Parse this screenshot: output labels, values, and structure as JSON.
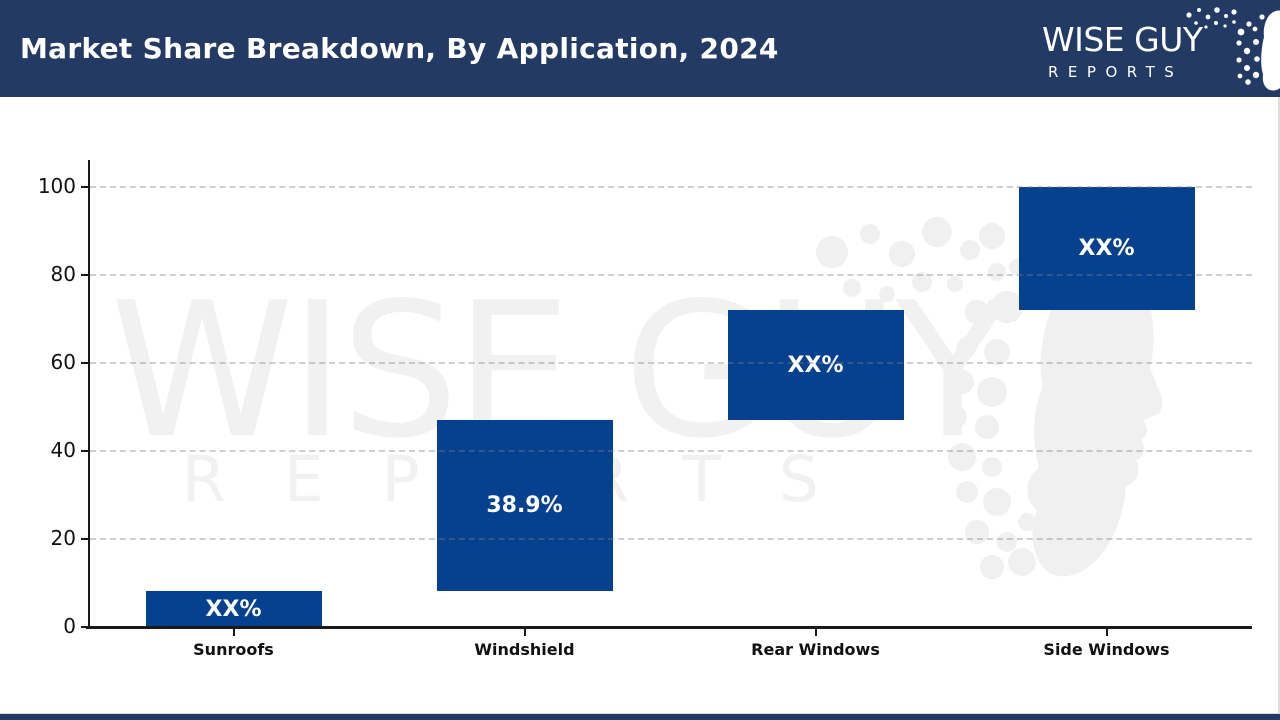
{
  "header": {
    "title": "Market Share Breakdown, By Application, 2024",
    "bg_color": "#223a64",
    "logo": {
      "line1": "WISE GUY",
      "line2": "REPORTS",
      "head_icon": "dotted-head-profile"
    }
  },
  "watermark": {
    "line1": "WISE GUY",
    "line2": "REPORTS",
    "head_icon": "dotted-head-profile"
  },
  "chart_data": {
    "type": "bar",
    "subtype": "waterfall-stacked-breakdown",
    "title": "Market Share Breakdown, By Application, 2024",
    "categories": [
      "Sunroofs",
      "Windshield",
      "Rear Windows",
      "Side Windows"
    ],
    "segments": [
      {
        "category": "Sunroofs",
        "start": 0,
        "end": 8.1,
        "value": 8.1,
        "label": "XX%"
      },
      {
        "category": "Windshield",
        "start": 8.1,
        "end": 47.0,
        "value": 38.9,
        "label": "38.9%"
      },
      {
        "category": "Rear Windows",
        "start": 47.0,
        "end": 72.0,
        "value": 25.0,
        "label": "XX%"
      },
      {
        "category": "Side Windows",
        "start": 72.0,
        "end": 100.0,
        "value": 28.0,
        "label": "XX%"
      }
    ],
    "xlabel": "",
    "ylabel": "",
    "yticks": [
      0,
      20,
      40,
      60,
      80,
      100
    ],
    "ylim": [
      0,
      106
    ],
    "grid": "horizontal-dashed",
    "legend": "none",
    "bar_color": "#05418f",
    "bar_label_color": "#ffffff",
    "axis_color": "#1a1a1a",
    "gridline_color": "#d8d8d8"
  }
}
